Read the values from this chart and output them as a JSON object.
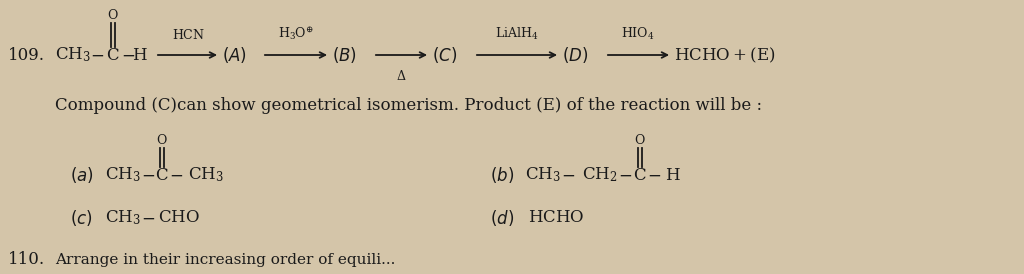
{
  "bg_color": "#d4c5a9",
  "text_color": "#1a1a1a",
  "fig_width": 10.24,
  "fig_height": 2.74,
  "dpi": 100,
  "fs_main": 12,
  "fs_small": 9,
  "fs_label": 10
}
